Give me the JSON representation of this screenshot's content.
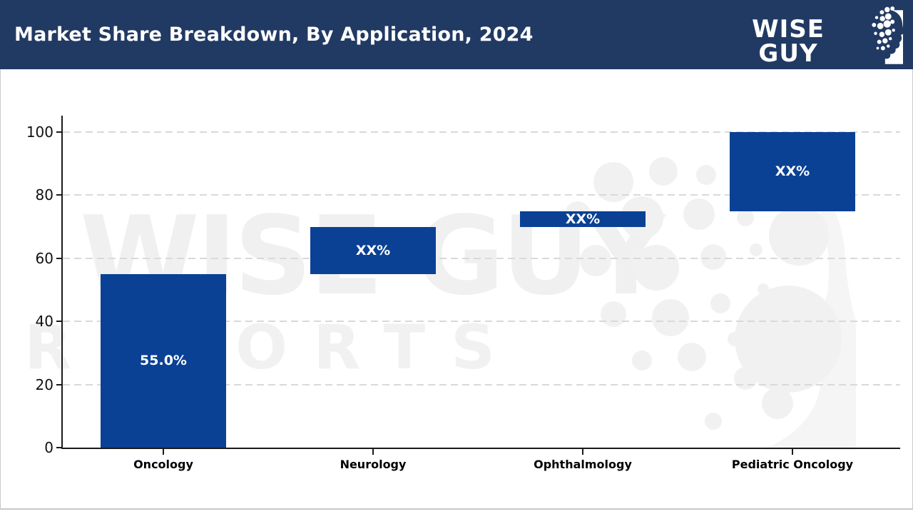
{
  "header": {
    "title": "Market Share Breakdown, By Application, 2024",
    "bg_color": "#213a63",
    "logo": {
      "name": "WISE GUY",
      "subname": "R E P O R T S"
    }
  },
  "watermark": {
    "line1": "WISE GUY",
    "line2": "REPORTS"
  },
  "chart_data": {
    "type": "bar",
    "subtype": "waterfall",
    "title": "Market Share Breakdown, By Application, 2024",
    "categories": [
      "Oncology",
      "Neurology",
      "Ophthalmology",
      "Pediatric Oncology"
    ],
    "segments": [
      {
        "start": 0,
        "end": 55
      },
      {
        "start": 55,
        "end": 70
      },
      {
        "start": 70,
        "end": 75
      },
      {
        "start": 75,
        "end": 100
      }
    ],
    "bar_labels": [
      "55.0%",
      "XX%",
      "XX%",
      "XX%"
    ],
    "ylim": [
      0,
      105
    ],
    "yticks": [
      0,
      20,
      40,
      60,
      80,
      100
    ],
    "grid": "horizontal-dashed",
    "legend": "none",
    "bar_color": "#0a4195",
    "bar_label_color": "#ffffff",
    "axis_color": "#1a1a1a",
    "grid_color": "#d9d9d9"
  }
}
